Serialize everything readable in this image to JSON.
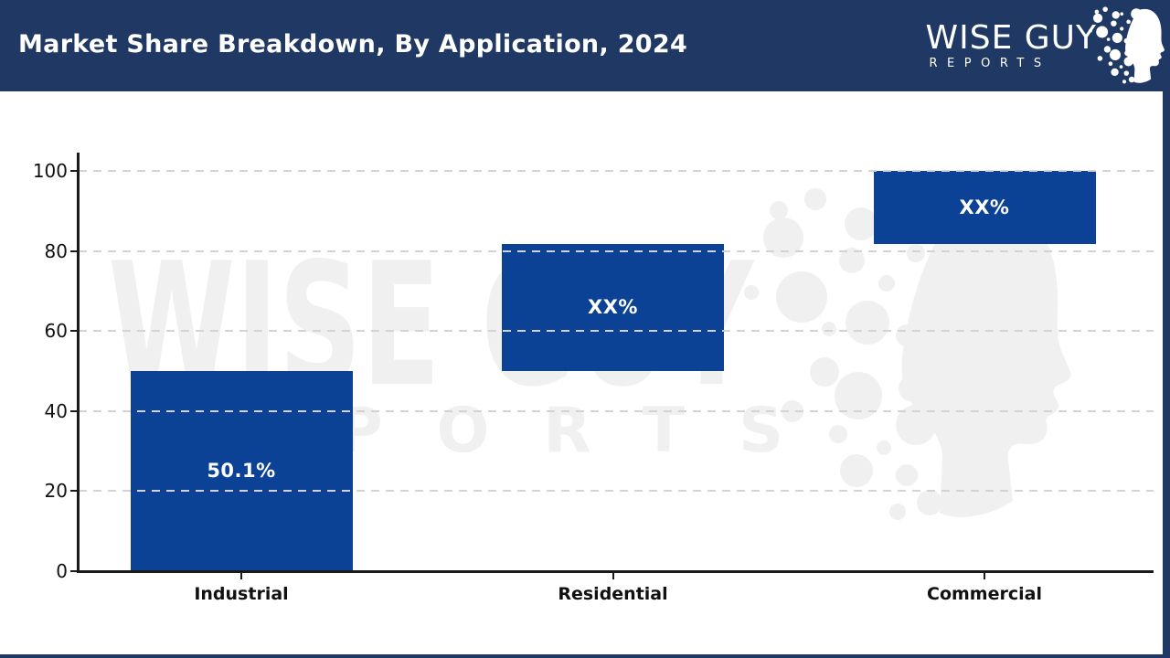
{
  "header": {
    "title": "Market Share Breakdown, By Application, 2024",
    "bg_color": "#1f3864",
    "logo": {
      "line1": "WISE GUY",
      "line2": "REPORTS"
    }
  },
  "watermark": {
    "line1": "WISE GUY",
    "line2": "REPORTS",
    "color": "#f0f0f0"
  },
  "chart_data": {
    "type": "bar",
    "subtype": "floating_segment_waterfall",
    "title": "Market Share Breakdown, By Application, 2024",
    "categories": [
      "Industrial",
      "Residential",
      "Commercial"
    ],
    "segments": [
      {
        "category": "Industrial",
        "start": 0,
        "end": 50.1,
        "label": "50.1%"
      },
      {
        "category": "Residential",
        "start": 50.1,
        "end": 81.8,
        "label": "XX%"
      },
      {
        "category": "Commercial",
        "start": 81.8,
        "end": 100,
        "label": "XX%"
      }
    ],
    "xlabel": "",
    "ylabel": "",
    "ylim": [
      0,
      100
    ],
    "yticks": [
      0,
      20,
      40,
      60,
      80,
      100
    ],
    "grid": "horizontal dashed, drawn above bars",
    "legend": "none",
    "bar_color": "#0b4296",
    "bar_label_color": "#ffffff",
    "axis_color": "#1a1a1a",
    "grid_color": "#d3d3d3"
  }
}
